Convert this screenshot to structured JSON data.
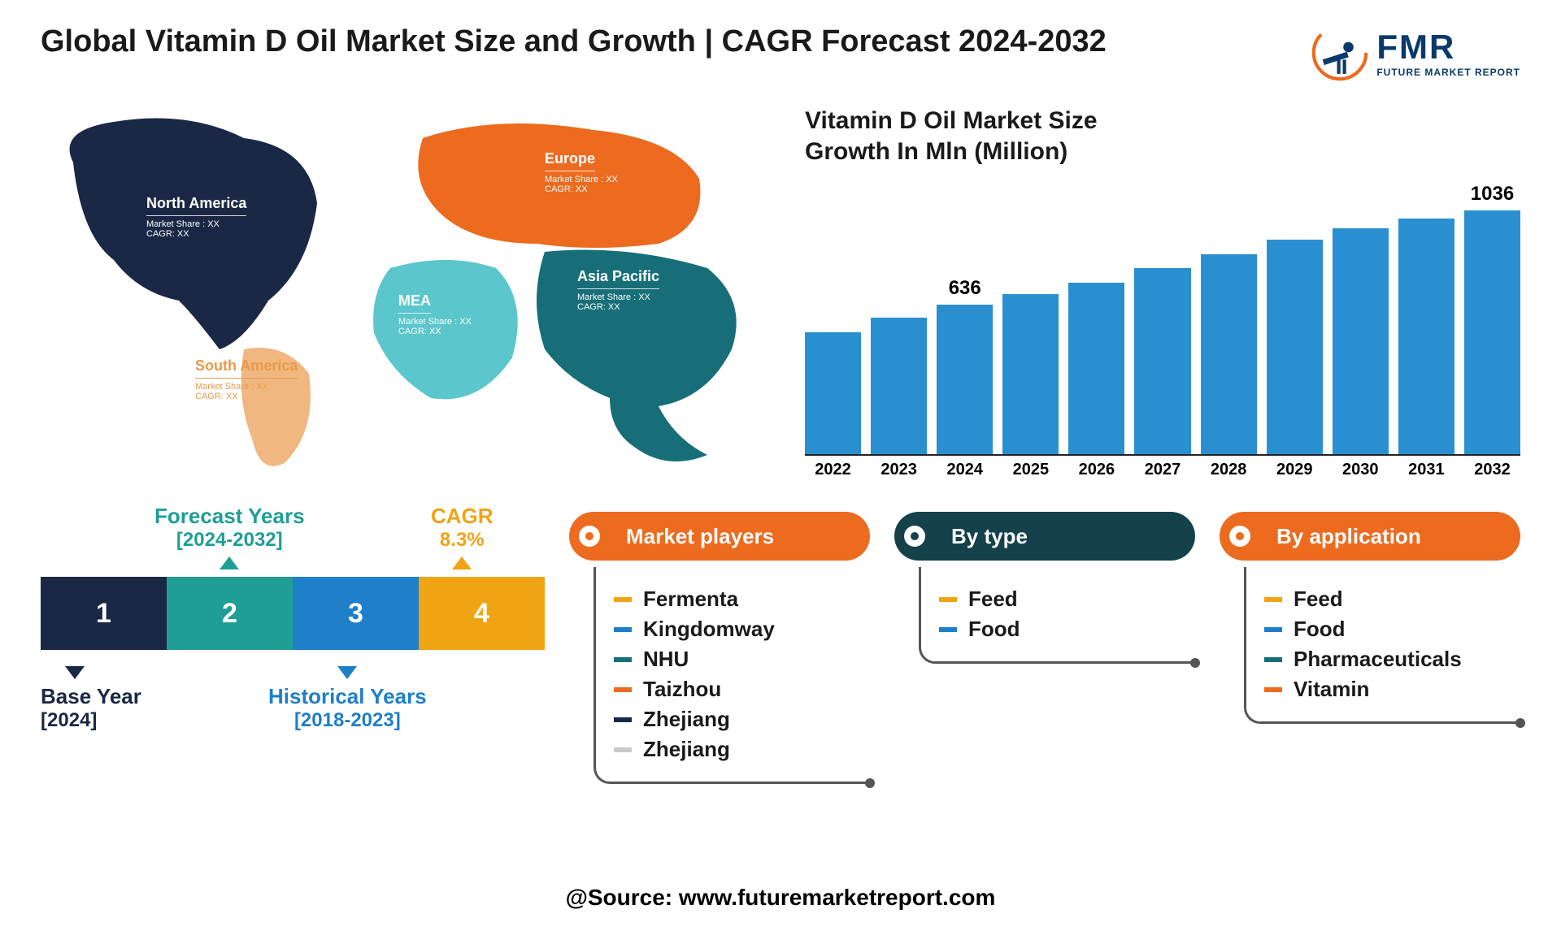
{
  "title": "Global Vitamin D Oil Market Size and Growth | CAGR Forecast 2024-2032",
  "logo": {
    "main": "FMR",
    "sub": "FUTURE MARKET REPORT",
    "icon_color": "#ec6b1f",
    "text_color": "#0a3a6b"
  },
  "source": "@Source: www.futuremarketreport.com",
  "map": {
    "regions": [
      {
        "name": "North America",
        "share": "Market Share : XX",
        "cagr": "CAGR: XX",
        "color": "#1a2845"
      },
      {
        "name": "South America",
        "share": "Market Share : XX",
        "cagr": "CAGR: XX",
        "color": "#f0b880"
      },
      {
        "name": "Europe",
        "share": "Market Share : XX",
        "cagr": "CAGR: XX",
        "color": "#ec6b1f"
      },
      {
        "name": "MEA",
        "share": "Market Share : XX",
        "cagr": "CAGR: XX",
        "color": "#5bc6cc"
      },
      {
        "name": "Asia Pacific",
        "share": "Market Share : XX",
        "cagr": "CAGR: XX",
        "color": "#176e78"
      }
    ]
  },
  "chart": {
    "title": "Vitamin D Oil Market Size Growth In Mln (Million)",
    "type": "bar",
    "years": [
      "2022",
      "2023",
      "2024",
      "2025",
      "2026",
      "2027",
      "2028",
      "2029",
      "2030",
      "2031",
      "2032"
    ],
    "values": [
      520,
      580,
      636,
      680,
      730,
      790,
      850,
      910,
      960,
      1000,
      1036
    ],
    "show_value_on": {
      "2024": "636",
      "2032": "1036"
    },
    "bar_color": "#2a8fd0",
    "axis_color": "#222222",
    "label_fontsize": 20,
    "value_fontsize": 24,
    "ylim_max": 1100
  },
  "timeline": {
    "labels": {
      "forecast": {
        "title": "Forecast Years",
        "range": "[2024-2032]",
        "color": "#1f9e96"
      },
      "cagr": {
        "title": "CAGR",
        "value": "8.3%",
        "color": "#f0a414"
      },
      "base": {
        "title": "Base Year",
        "range": "[2024]",
        "color": "#1a2845"
      },
      "hist": {
        "title": "Historical Years",
        "range": "[2018-2023]",
        "color": "#1f7fc9"
      }
    },
    "segments": [
      {
        "num": "1",
        "color": "#1a2845"
      },
      {
        "num": "2",
        "color": "#1f9e96"
      },
      {
        "num": "3",
        "color": "#1f7fc9"
      },
      {
        "num": "4",
        "color": "#f0a414"
      }
    ]
  },
  "categories": [
    {
      "pill": "Market players",
      "pill_color": "#ec6b1f",
      "items": [
        {
          "label": "Fermenta",
          "dash_color": "#f0a414"
        },
        {
          "label": "Kingdomway",
          "dash_color": "#1f7fc9"
        },
        {
          "label": "NHU",
          "dash_color": "#176e78"
        },
        {
          "label": "Taizhou",
          "dash_color": "#ec6b1f"
        },
        {
          "label": "Zhejiang",
          "dash_color": "#1a2845"
        },
        {
          "label": "Zhejiang",
          "dash_color": "#c9c9c9"
        }
      ]
    },
    {
      "pill": "By type",
      "pill_color": "#14414a",
      "items": [
        {
          "label": "Feed",
          "dash_color": "#f0a414"
        },
        {
          "label": "Food",
          "dash_color": "#1f7fc9"
        }
      ]
    },
    {
      "pill": "By application",
      "pill_color": "#ec6b1f",
      "items": [
        {
          "label": "Feed",
          "dash_color": "#f0a414"
        },
        {
          "label": "Food",
          "dash_color": "#1f7fc9"
        },
        {
          "label": "Pharmaceuticals",
          "dash_color": "#176e78"
        },
        {
          "label": "Vitamin",
          "dash_color": "#ec6b1f"
        }
      ]
    }
  ]
}
